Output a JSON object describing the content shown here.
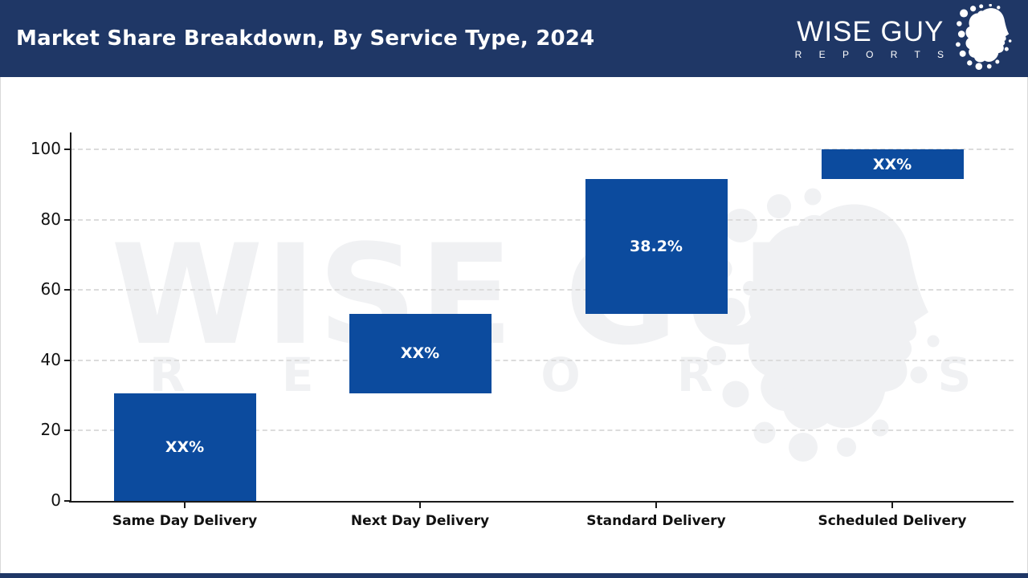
{
  "header": {
    "title": "Market Share Breakdown, By Service Type, 2024",
    "logo": {
      "line1": "WISE GUY",
      "line2": "REPORTS"
    }
  },
  "watermark": {
    "line1": "WISE GUY",
    "line2": "REPORTS"
  },
  "colors": {
    "header_bg": "#1f3766",
    "footer_bg": "#1f3766",
    "bar": "#0c4b9e",
    "gridline": "#dcdcdc",
    "axis": "#1a1a1a",
    "bar_label": "#ffffff",
    "watermark": "#f0f1f3"
  },
  "chart_data": {
    "type": "bar",
    "subtype": "waterfall",
    "title": "Market Share Breakdown, By Service Type, 2024",
    "categories": [
      "Same Day Delivery",
      "Next Day Delivery",
      "Standard Delivery",
      "Scheduled Delivery"
    ],
    "segments": [
      {
        "category": "Same Day Delivery",
        "label": "XX%",
        "start": 0,
        "end": 30.5
      },
      {
        "category": "Next Day Delivery",
        "label": "XX%",
        "start": 30.5,
        "end": 53.3
      },
      {
        "category": "Standard Delivery",
        "label": "38.2%",
        "start": 53.3,
        "end": 91.5
      },
      {
        "category": "Scheduled Delivery",
        "label": "XX%",
        "start": 91.5,
        "end": 100
      }
    ],
    "xlabel": "",
    "ylabel": "",
    "ylim": [
      0,
      100
    ],
    "yticks": [
      0,
      20,
      40,
      60,
      80,
      100
    ],
    "grid": true,
    "legend": false,
    "bar_color": "#0c4b9e"
  }
}
